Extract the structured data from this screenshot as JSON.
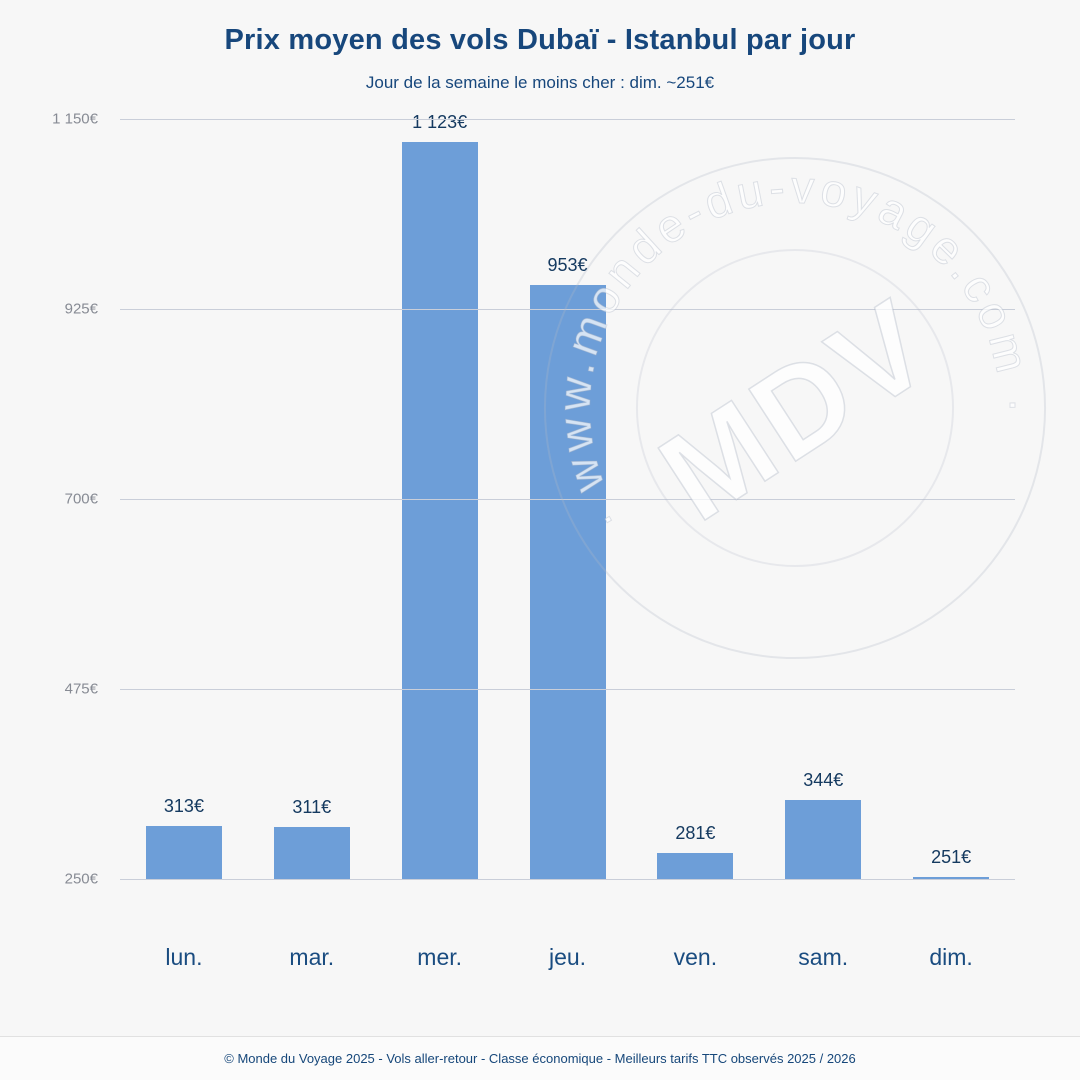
{
  "header": {
    "title": "Prix moyen des vols Dubaï - Istanbul par jour",
    "subtitle": "Jour de la semaine le moins cher : dim. ~251€"
  },
  "watermark": {
    "ring_text": "· www.monde-du-voyage.com ·",
    "center_text": "MDV"
  },
  "footer": {
    "text": "© Monde du Voyage 2025 - Vols aller-retour - Classe économique - Meilleurs tarifs TTC observés 2025 / 2026"
  },
  "colors": {
    "bar": "#6d9ed8",
    "title": "#17477c",
    "value_label": "#153a60",
    "x_label": "#1a4c80",
    "y_label": "#878b94",
    "grid": "#c9ced9",
    "background": "#f7f7f7"
  },
  "chart_data": {
    "type": "bar",
    "title": "Prix moyen des vols Dubaï - Istanbul par jour",
    "subtitle": "Jour de la semaine le moins cher : dim. ~251€",
    "categories": [
      "lun.",
      "mar.",
      "mer.",
      "jeu.",
      "ven.",
      "sam.",
      "dim."
    ],
    "values": [
      313,
      311,
      1123,
      953,
      281,
      344,
      251
    ],
    "value_labels": [
      "313€",
      "311€",
      "1 123€",
      "953€",
      "281€",
      "344€",
      "251€"
    ],
    "xlabel": "",
    "ylabel": "",
    "ylim": [
      250,
      1150
    ],
    "yticks": [
      250,
      475,
      700,
      925,
      1150
    ],
    "ytick_labels": [
      "250€",
      "475€",
      "700€",
      "925€",
      "1 150€"
    ],
    "grid": true,
    "legend": false,
    "cheapest_day": "dim.",
    "cheapest_price": 251
  }
}
